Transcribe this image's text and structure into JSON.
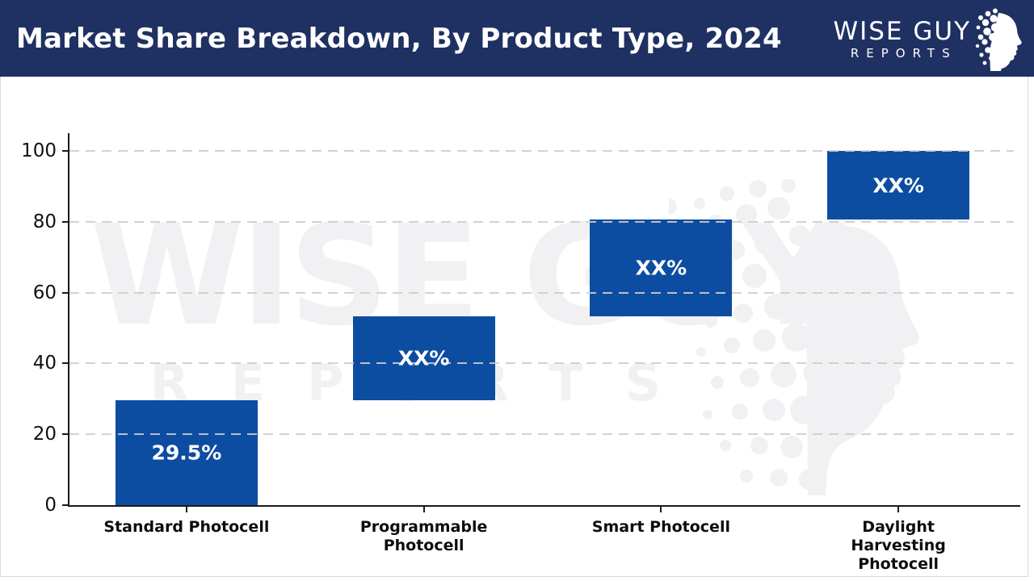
{
  "header": {
    "title": "Market Share Breakdown, By Product Type, 2024",
    "bg_color": "#1f3162",
    "logo": {
      "main": "WISE GUY",
      "sub": "REPORTS"
    }
  },
  "watermark": {
    "main": "WISE GUY",
    "sub": "REPORTS"
  },
  "chart_data": {
    "type": "bar",
    "subtype": "waterfall",
    "title": "Market Share Breakdown, By Product Type, 2024",
    "categories": [
      "Standard Photocell",
      "Programmable Photocell",
      "Smart Photocell",
      "Daylight Harvesting Photocell"
    ],
    "tick_labels": [
      "Standard Photocell",
      "Programmable\nPhotocell",
      "Smart Photocell",
      "Daylight\nHarvesting\nPhotocell"
    ],
    "segments": [
      {
        "category": "Standard Photocell",
        "start": 0,
        "end": 29.5,
        "value_label": "29.5%"
      },
      {
        "category": "Programmable Photocell",
        "start": 29.5,
        "end": 53.3,
        "value_label": "XX%"
      },
      {
        "category": "Smart Photocell",
        "start": 53.3,
        "end": 80.6,
        "value_label": "XX%"
      },
      {
        "category": "Daylight Harvesting Photocell",
        "start": 80.6,
        "end": 100,
        "value_label": "XX%"
      }
    ],
    "yticks": [
      0,
      20,
      40,
      60,
      80,
      100
    ],
    "ylim": [
      0,
      105
    ],
    "xlabel": "",
    "ylabel": "",
    "legend": "none",
    "grid": "horizontal-dashed",
    "bar_color": "#0d4da1",
    "grid_color": "#cdcdcd",
    "axis_color": "#1a1a1a"
  }
}
